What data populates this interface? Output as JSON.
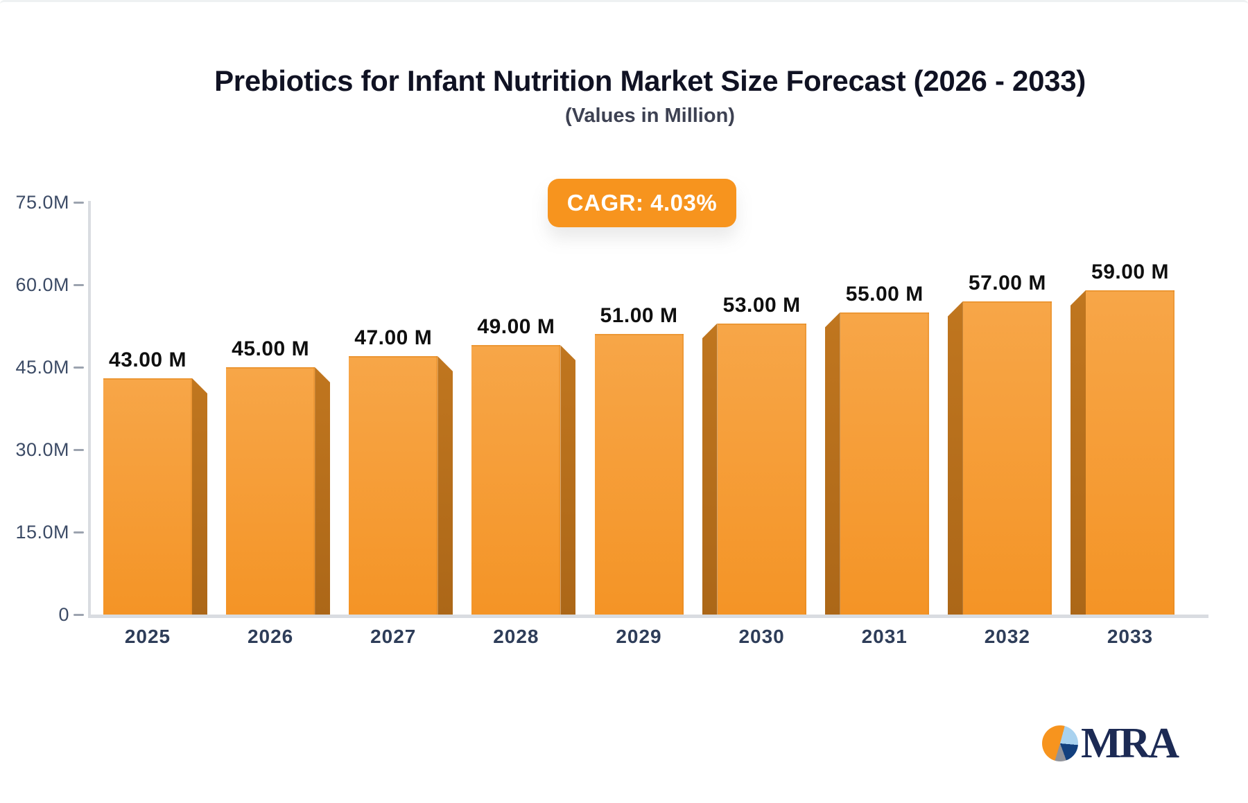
{
  "header": {
    "title": "Prebiotics for Infant Nutrition Market Size Forecast (2026 - 2033)",
    "subtitle": "(Values in Million)"
  },
  "badge": {
    "label": "CAGR: 4.03%",
    "bg": "#F7941E"
  },
  "chart_data": {
    "type": "bar",
    "title": "Prebiotics for Infant Nutrition Market Size Forecast (2026 - 2033)",
    "subtitle": "(Values in Million)",
    "unit": "Million",
    "cagr": "4.03%",
    "categories": [
      "2025",
      "2026",
      "2027",
      "2028",
      "2029",
      "2030",
      "2031",
      "2032",
      "2033"
    ],
    "values": [
      43,
      45,
      47,
      49,
      51,
      53,
      55,
      57,
      59
    ],
    "value_labels": [
      "43.00 M",
      "45.00 M",
      "47.00 M",
      "49.00 M",
      "51.00 M",
      "53.00 M",
      "55.00 M",
      "57.00 M",
      "59.00 M"
    ],
    "ylim": [
      0,
      75
    ],
    "yticks": [
      {
        "value": 0,
        "label": "0"
      },
      {
        "value": 15,
        "label": "15.0M"
      },
      {
        "value": 30,
        "label": "30.0M"
      },
      {
        "value": 45,
        "label": "45.0M"
      },
      {
        "value": 60,
        "label": "60.0M"
      },
      {
        "value": 75,
        "label": "75.0M"
      }
    ],
    "grid": false,
    "legend": false,
    "bar_color": "#F49B2F",
    "bar_side_color": "#B56E1E"
  },
  "logo": {
    "text": "MRA",
    "pie_colors": [
      "#F7941E",
      "#A9D2EF",
      "#12407E",
      "#90939B"
    ]
  }
}
